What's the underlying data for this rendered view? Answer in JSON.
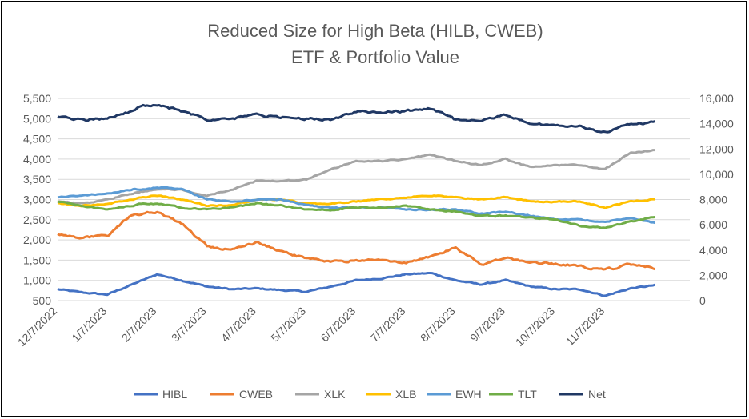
{
  "chart_data": {
    "type": "line",
    "title": [
      "Reduced Size for High Beta (HILB, CWEB)",
      "ETF & Portfolio Value"
    ],
    "x_tick_labels": [
      "12/7/2022",
      "1/7/2023",
      "2/7/2023",
      "3/7/2023",
      "4/7/2023",
      "5/7/2023",
      "6/7/2023",
      "7/7/2023",
      "8/7/2023",
      "9/7/2023",
      "10/7/2023",
      "11/7/2023"
    ],
    "y_left": {
      "range": [
        500,
        5500
      ],
      "ticks": [
        500,
        1000,
        1500,
        2000,
        2500,
        3000,
        3500,
        4000,
        4500,
        5000,
        5500
      ],
      "tick_labels": [
        "500",
        "1,000",
        "1,500",
        "2,000",
        "2,500",
        "3,000",
        "3,500",
        "4,000",
        "4,500",
        "5,000",
        "5,500"
      ]
    },
    "y_right": {
      "range": [
        0,
        16000
      ],
      "ticks": [
        0,
        2000,
        4000,
        6000,
        8000,
        10000,
        12000,
        14000,
        16000
      ],
      "tick_labels": [
        "0",
        "2,000",
        "4,000",
        "6,000",
        "8,000",
        "10,000",
        "12,000",
        "14,000",
        "16,000"
      ]
    },
    "grid": true,
    "legend_position": "bottom",
    "x_months": [
      0,
      0.5,
      1,
      1.5,
      1.7,
      2,
      2.5,
      3,
      3.5,
      4,
      4.5,
      5,
      5.5,
      6,
      6.5,
      7,
      7.5,
      8,
      8.5,
      9,
      9.5,
      10,
      10.5,
      11,
      11.5,
      12
    ],
    "series": [
      {
        "name": "HIBL",
        "axis": "left",
        "color": "#4472C4",
        "values": [
          780,
          700,
          650,
          900,
          1000,
          1150,
          1000,
          850,
          780,
          800,
          760,
          720,
          850,
          1000,
          1050,
          1150,
          1180,
          1000,
          900,
          1000,
          850,
          780,
          780,
          620,
          800,
          880
        ]
      },
      {
        "name": "CWEB",
        "axis": "left",
        "color": "#ED7D31",
        "values": [
          2150,
          2050,
          2100,
          2650,
          2650,
          2700,
          2400,
          1850,
          1750,
          1950,
          1700,
          1550,
          1450,
          1500,
          1500,
          1450,
          1600,
          1800,
          1400,
          1550,
          1450,
          1400,
          1350,
          1250,
          1400,
          1300
        ]
      },
      {
        "name": "XLK",
        "axis": "left",
        "color": "#A5A5A5",
        "values": [
          2950,
          2900,
          3000,
          3150,
          3200,
          3250,
          3250,
          3100,
          3250,
          3450,
          3450,
          3500,
          3750,
          3950,
          3950,
          4000,
          4100,
          3950,
          3850,
          4000,
          3800,
          3850,
          3850,
          3750,
          4150,
          4220
        ]
      },
      {
        "name": "XLB",
        "axis": "left",
        "color": "#FFC000",
        "values": [
          2900,
          2850,
          2900,
          3000,
          3050,
          3100,
          3000,
          2850,
          2850,
          3000,
          3000,
          2900,
          2900,
          2950,
          3000,
          3050,
          3100,
          3050,
          3000,
          3050,
          2950,
          2950,
          2950,
          2800,
          2950,
          3000
        ]
      },
      {
        "name": "EWH",
        "axis": "left",
        "color": "#5B9BD5",
        "values": [
          3050,
          3100,
          3150,
          3250,
          3250,
          3300,
          3250,
          3000,
          2950,
          3000,
          3000,
          2850,
          2800,
          2800,
          2800,
          2750,
          2750,
          2750,
          2650,
          2700,
          2600,
          2500,
          2500,
          2450,
          2550,
          2420
        ]
      },
      {
        "name": "TLT",
        "axis": "left",
        "color": "#70AD47",
        "values": [
          2950,
          2850,
          2750,
          2850,
          2900,
          2900,
          2800,
          2750,
          2800,
          2900,
          2850,
          2750,
          2750,
          2800,
          2800,
          2850,
          2750,
          2700,
          2600,
          2600,
          2550,
          2500,
          2350,
          2300,
          2450,
          2580
        ]
      },
      {
        "name": "Net",
        "axis": "right",
        "color": "#203864",
        "values": [
          14600,
          14300,
          14400,
          15000,
          15400,
          15500,
          15000,
          14300,
          14400,
          14700,
          14500,
          14400,
          14300,
          15000,
          14900,
          15000,
          15200,
          14300,
          14300,
          14700,
          14000,
          13800,
          13800,
          13300,
          14000,
          14100
        ]
      }
    ]
  }
}
